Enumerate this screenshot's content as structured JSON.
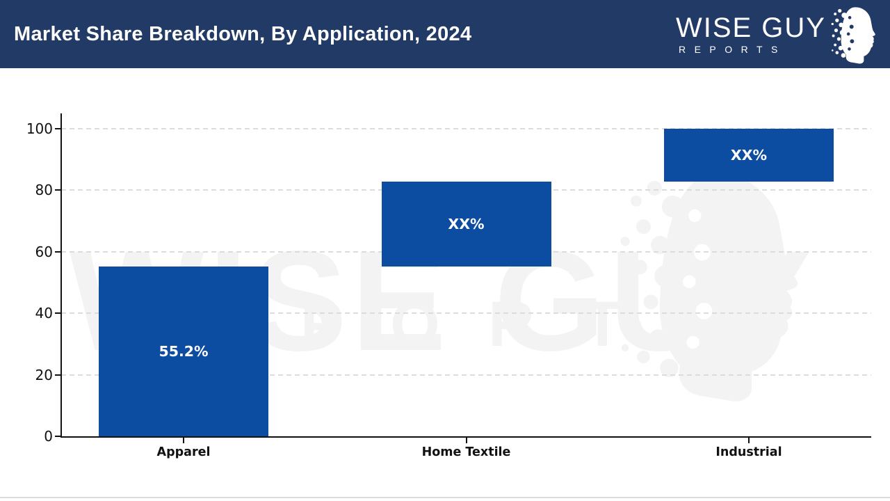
{
  "header": {
    "title": "Market Share Breakdown, By Application, 2024",
    "logo": {
      "line1": "WISE GUY",
      "line2": "REPORTS"
    }
  },
  "watermark": {
    "line1": "WISE GUY",
    "line2": "R E P O R T S"
  },
  "colors": {
    "header_bg": "#213A66",
    "bar": "#0C4DA2",
    "watermark": "#F3F3F3",
    "grid": "#DCDCDC",
    "axis": "#111111",
    "bar_label": "#FFFFFF"
  },
  "chart_data": {
    "type": "bar",
    "subtype": "floating-waterfall",
    "title": "Market Share Breakdown, By Application, 2024",
    "categories": [
      "Apparel",
      "Home Textile",
      "Industrial"
    ],
    "segments": [
      {
        "category": "Apparel",
        "start": 0,
        "end": 55.2,
        "label": "55.2%"
      },
      {
        "category": "Home Textile",
        "start": 55.2,
        "end": 82.8,
        "label": "XX%"
      },
      {
        "category": "Industrial",
        "start": 82.8,
        "end": 100,
        "label": "XX%"
      }
    ],
    "yticks": [
      0,
      20,
      40,
      60,
      80,
      100
    ],
    "ylim": [
      0,
      105
    ],
    "xlabel": "",
    "ylabel": "",
    "grid": "horizontal-dashed",
    "legend": "none",
    "bar_color": "#0C4DA2"
  }
}
